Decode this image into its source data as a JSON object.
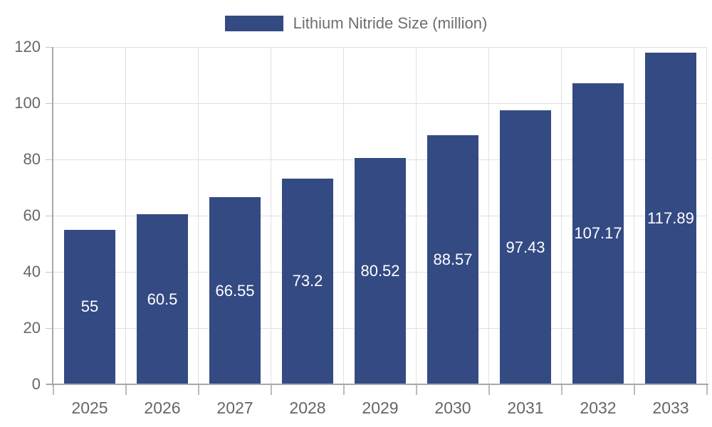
{
  "chart_data": {
    "type": "bar",
    "title": "",
    "series_name": "Lithium Nitride Size (million)",
    "categories": [
      "2025",
      "2026",
      "2027",
      "2028",
      "2029",
      "2030",
      "2031",
      "2032",
      "2033"
    ],
    "values": [
      55,
      60.5,
      66.55,
      73.2,
      80.52,
      88.57,
      97.43,
      107.17,
      117.89
    ],
    "value_labels": [
      "55",
      "60.5",
      "66.55",
      "73.2",
      "80.52",
      "88.57",
      "97.43",
      "107.17",
      "117.89"
    ],
    "xlabel": "",
    "ylabel": "",
    "ylim": [
      0,
      120
    ],
    "yticks": [
      0,
      20,
      40,
      60,
      80,
      100,
      120
    ],
    "grid": true,
    "legend_position": "top-center",
    "colors": {
      "bar": "#344a83",
      "value_label": "#ffffff",
      "axis_text": "#666666",
      "legend_text": "#6e6e6e",
      "gridline": "#e0e0e4",
      "axis_line": "#a8a8a8",
      "tick": "#bbbbbb",
      "background": "#ffffff"
    }
  }
}
